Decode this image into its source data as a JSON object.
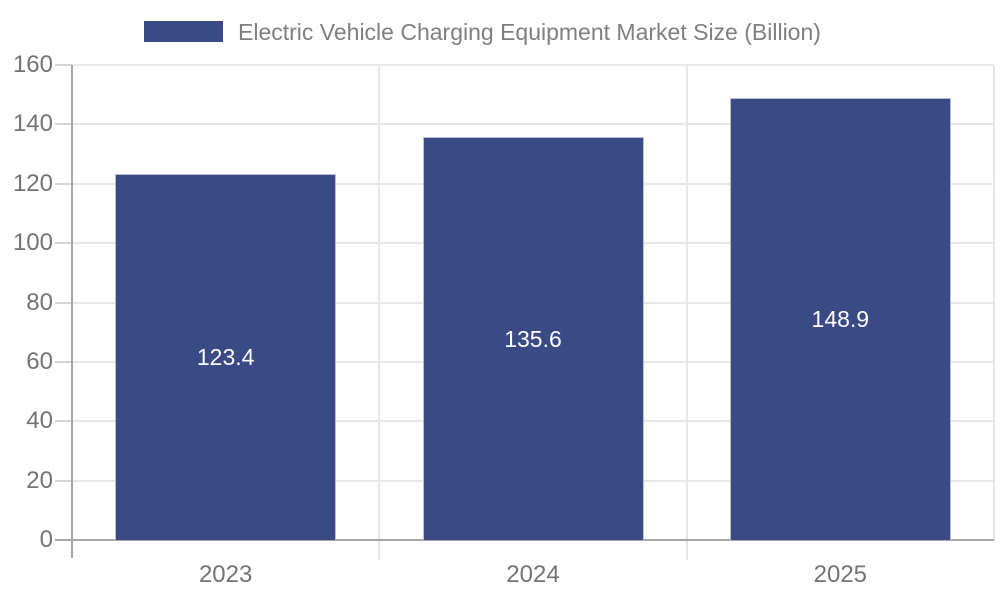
{
  "legend": {
    "label": "Electric Vehicle Charging Equipment Market Size (Billion)"
  },
  "chart_data": {
    "type": "bar",
    "title": "Electric Vehicle Charging Equipment Market Size (Billion)",
    "categories": [
      "2023",
      "2024",
      "2025"
    ],
    "values": [
      123.4,
      135.6,
      148.9
    ],
    "bar_labels": [
      "123.4",
      "135.6",
      "148.9"
    ],
    "xlabel": "",
    "ylabel": "",
    "ylim": [
      0,
      160
    ],
    "yticks": [
      0,
      20,
      40,
      60,
      80,
      100,
      120,
      140,
      160
    ],
    "grid": true,
    "legend_position": "top",
    "colors": {
      "bar": "#3a4a84",
      "bar_edge": "#b7bed4",
      "grid": "#e7e7e7",
      "axis": "#a6a6a6",
      "tick_dash": "#d4d4d4",
      "tick_label": "#737373",
      "legend_text": "#7f7f7f",
      "bar_label": "#ffffff",
      "background": "#ffffff"
    }
  }
}
